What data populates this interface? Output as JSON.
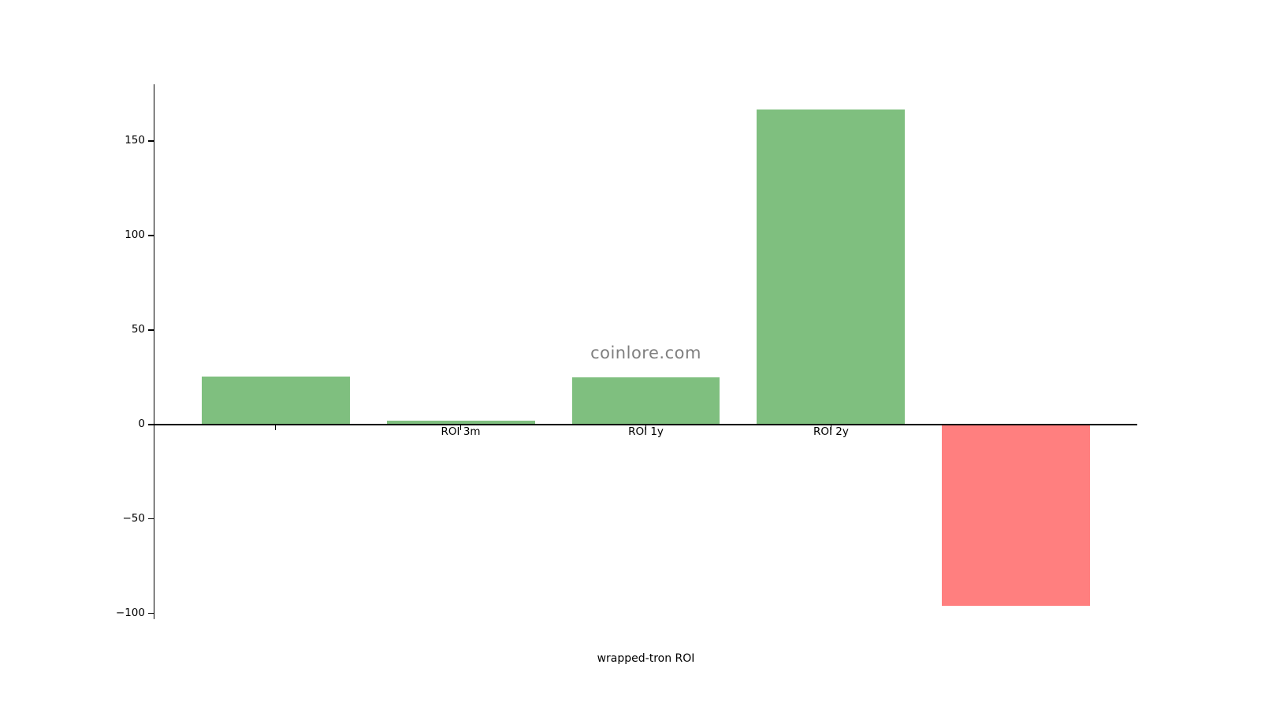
{
  "page": {
    "background": "#ffffff"
  },
  "chart_data": {
    "type": "bar",
    "title": "",
    "watermark": "coinlore.com",
    "watermark_color": "#7f7f7f",
    "xlabel": "wrapped-tron ROI",
    "ylabel": "",
    "categories": [
      "",
      "ROI 3m",
      "ROI 1y",
      "ROI 2y",
      ""
    ],
    "values": [
      25.3,
      2.0,
      24.9,
      166.6,
      -95.8
    ],
    "bar_colors": [
      "#7fbf7f",
      "#7fbf7f",
      "#7fbf7f",
      "#7fbf7f",
      "#ff7f7f"
    ],
    "positive_color": "#7fbf7f",
    "negative_color": "#ff7f7f",
    "axis_color": "#000000",
    "ylim": [
      -103,
      180
    ],
    "yticks": [
      {
        "value": 150,
        "label": "150"
      },
      {
        "value": 100,
        "label": "100"
      },
      {
        "value": 50,
        "label": "50"
      },
      {
        "value": 0,
        "label": "0"
      },
      {
        "value": -50,
        "label": "−50"
      },
      {
        "value": -100,
        "label": "−100"
      }
    ],
    "grid": false,
    "legend": "none"
  }
}
